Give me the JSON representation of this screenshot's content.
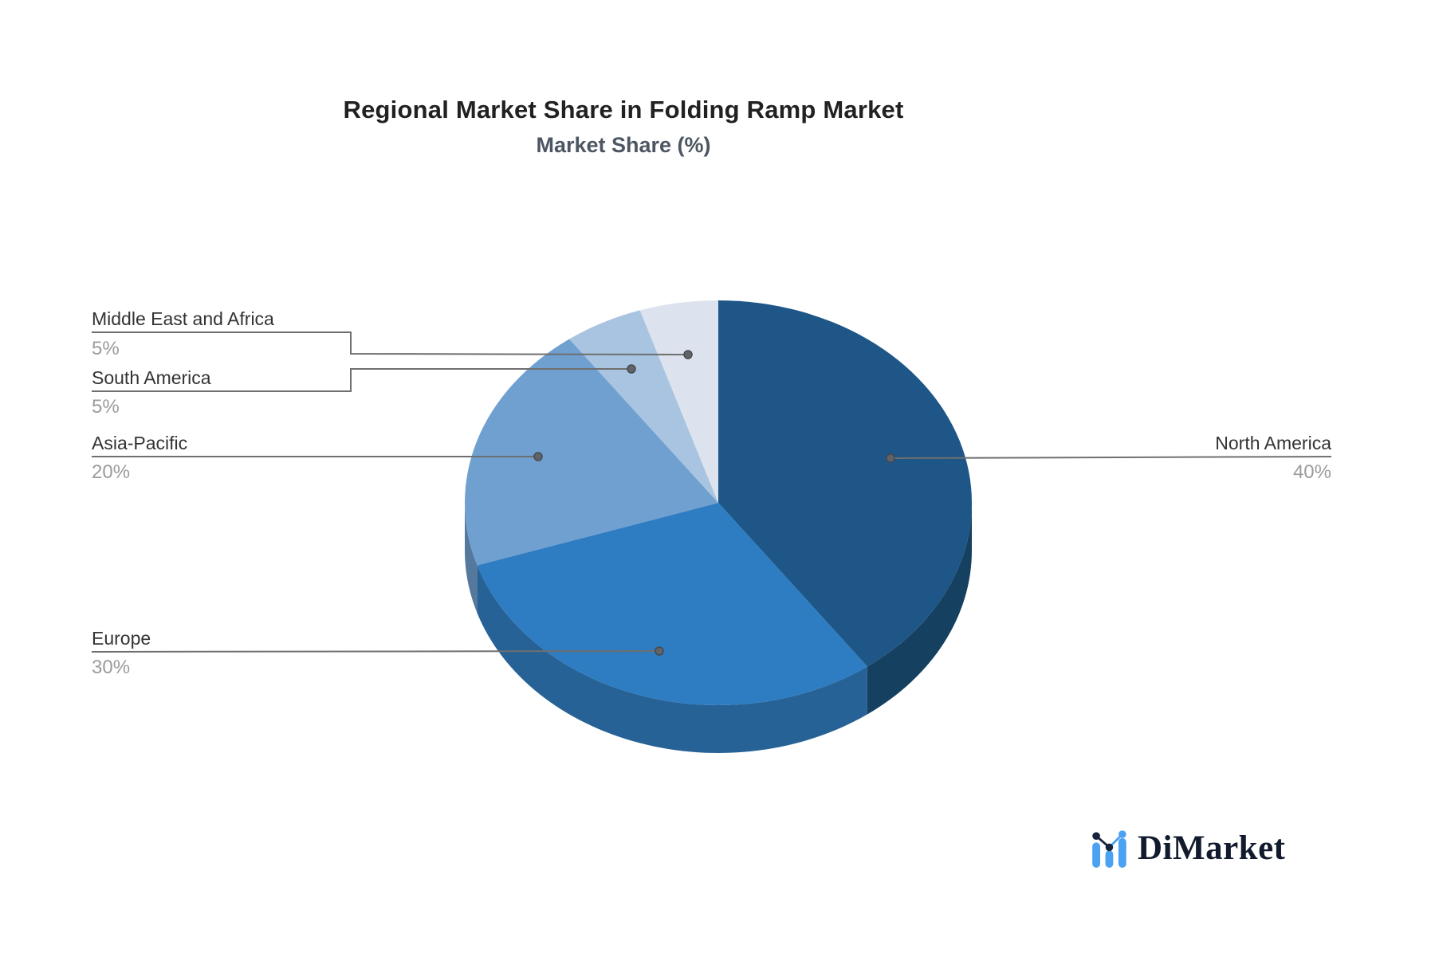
{
  "header": {
    "title": "Regional Market Share in Folding Ramp Market",
    "subtitle": "Market Share (%)"
  },
  "chart_data": {
    "type": "pie",
    "style": "3d",
    "title": "Regional Market Share in Folding Ramp Market",
    "subtitle": "Market Share (%)",
    "unit": "%",
    "start_angle": "12 o'clock",
    "direction": "clockwise",
    "legend_position": "callout labels",
    "slices": [
      {
        "label": "North America",
        "value": 40,
        "display": "40%",
        "color": "#1E5687",
        "side_color": "#15405F",
        "label_side": "right"
      },
      {
        "label": "Europe",
        "value": 30,
        "display": "30%",
        "color": "#2E7CC1",
        "side_color": "#266296",
        "label_side": "left"
      },
      {
        "label": "Asia-Pacific",
        "value": 20,
        "display": "20%",
        "color": "#6FA0D0",
        "side_color": "#55789D",
        "label_side": "left"
      },
      {
        "label": "South America",
        "value": 5,
        "display": "5%",
        "color": "#A8C4E0",
        "side_color": "#7E93A8",
        "label_side": "left"
      },
      {
        "label": "Middle East and Africa",
        "value": 5,
        "display": "5%",
        "color": "#DCE3EE",
        "side_color": "#A5ABB4",
        "label_side": "left"
      }
    ],
    "callout_line_color": "#6f6f6f",
    "label_color": "#333333",
    "value_color": "#9b9b9b"
  },
  "branding": {
    "name": "DiMarket",
    "icon": "bar-line-chart-icon",
    "accent": "#4BA1F2",
    "text_color": "#111b2d"
  }
}
